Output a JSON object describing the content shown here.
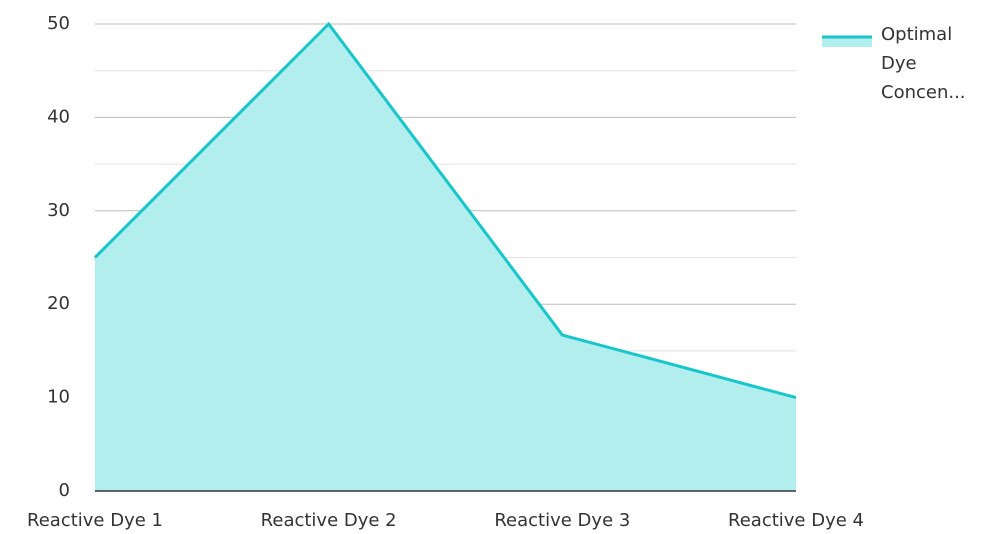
{
  "chart_data": {
    "type": "area",
    "categories": [
      "Reactive Dye 1",
      "Reactive Dye 2",
      "Reactive Dye 3",
      "Reactive Dye 4"
    ],
    "series": [
      {
        "name": "Optimal Dye Concen...",
        "color": "#17c6cb",
        "fill": "#b2eeee",
        "values": [
          25,
          50,
          16.7,
          10
        ]
      }
    ],
    "ylim": [
      0,
      50
    ],
    "yticks": [
      0,
      10,
      20,
      30,
      40,
      50
    ],
    "minor_yticks": [
      5,
      15,
      25,
      35,
      45
    ],
    "grid": true,
    "legend": "top-right"
  }
}
